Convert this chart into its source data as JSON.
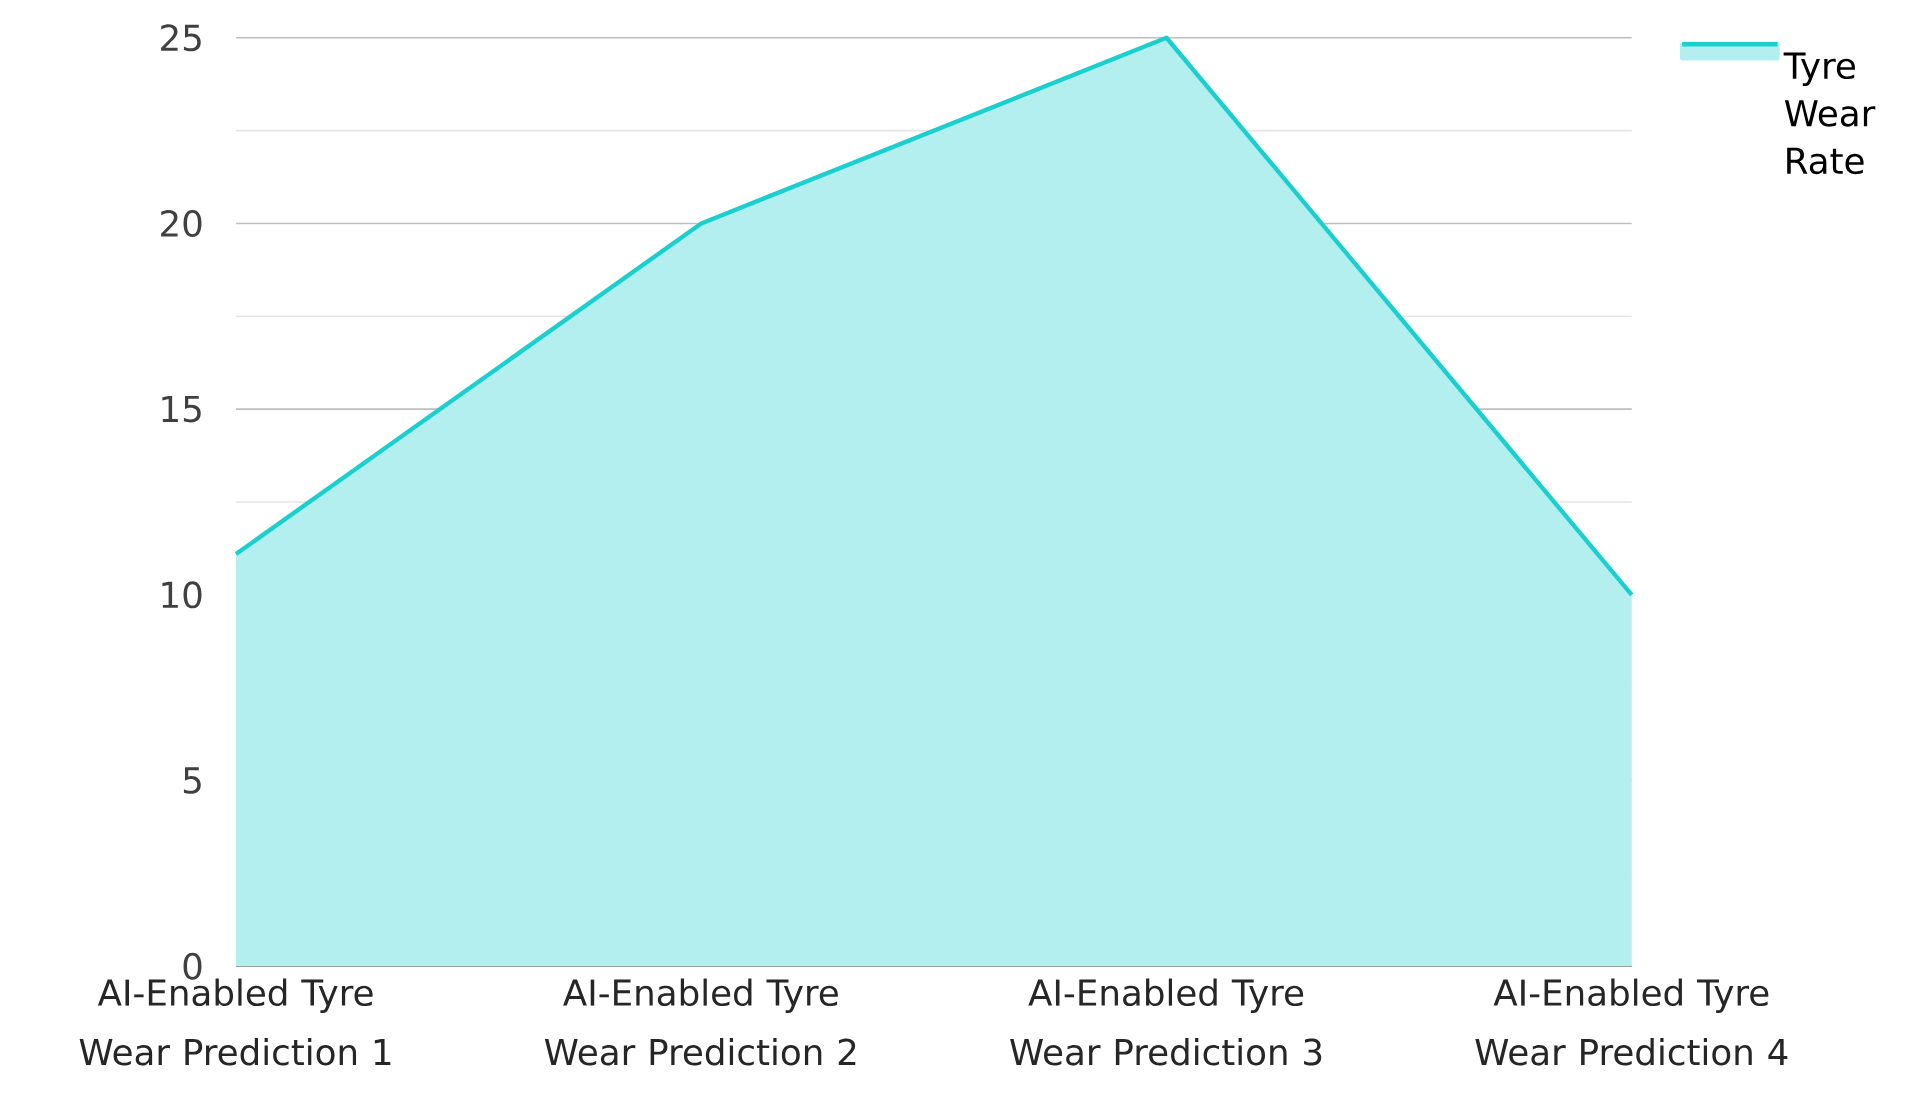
{
  "chart_data": {
    "type": "area",
    "categories": [
      "AI-Enabled Tyre Wear Prediction 1",
      "AI-Enabled Tyre Wear Prediction 2",
      "AI-Enabled Tyre Wear Prediction 3",
      "AI-Enabled Tyre Wear Prediction 4"
    ],
    "series": [
      {
        "name": "Tyre Wear Rate",
        "color": "#1ccfcf",
        "values": [
          11.1,
          20,
          25,
          10
        ]
      }
    ],
    "ylim": [
      0,
      25
    ],
    "yticks": [
      0,
      5,
      10,
      15,
      20,
      25
    ],
    "grid": "y",
    "legend": "top right"
  }
}
